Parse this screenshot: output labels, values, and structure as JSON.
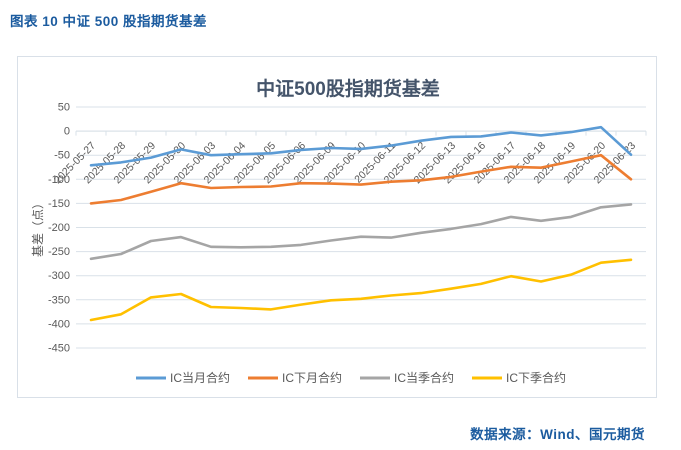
{
  "page": {
    "header_caption": "图表 10  中证 500 股指期货基差",
    "footer_source": "数据来源：Wind、国元期货",
    "accent_text_color": "#1B5B9F"
  },
  "chart_data": {
    "type": "line",
    "title": "中证500股指期货基差",
    "xlabel": "",
    "ylabel": "基差（点）",
    "ylim": [
      -450,
      50
    ],
    "ytick_step": 50,
    "grid": true,
    "legend_position": "bottom",
    "gridline_color": "#D9E1E8",
    "categories": [
      "2025-05-27",
      "2025-05-28",
      "2025-05-29",
      "2025-05-30",
      "2025-06-03",
      "2025-06-04",
      "2025-06-05",
      "2025-06-06",
      "2025-06-09",
      "2025-06-10",
      "2025-06-11",
      "2025-06-12",
      "2025-06-13",
      "2025-06-16",
      "2025-06-17",
      "2025-06-18",
      "2025-06-19",
      "2025-06-20",
      "2025-06-23"
    ],
    "series": [
      {
        "name": "IC当月合约",
        "color": "#5B9BD5",
        "values": [
          -71,
          -65,
          -55,
          -38,
          -50,
          -48,
          -46,
          -39,
          -35,
          -37,
          -30,
          -20,
          -12,
          -11,
          -3,
          -9,
          -2,
          8,
          -49
        ]
      },
      {
        "name": "IC下月合约",
        "color": "#ED7D31",
        "values": [
          -150,
          -143,
          -126,
          -108,
          -118,
          -116,
          -115,
          -108,
          -109,
          -111,
          -105,
          -102,
          -95,
          -84,
          -74,
          -76,
          -63,
          -50,
          -100
        ]
      },
      {
        "name": "IC当季合约",
        "color": "#A5A5A5",
        "values": [
          -265,
          -255,
          -228,
          -220,
          -240,
          -241,
          -240,
          -236,
          -227,
          -219,
          -221,
          -211,
          -203,
          -193,
          -178,
          -186,
          -178,
          -158,
          -152
        ]
      },
      {
        "name": "IC下季合约",
        "color": "#FFC000",
        "values": [
          -392,
          -380,
          -345,
          -338,
          -365,
          -367,
          -370,
          -360,
          -351,
          -348,
          -341,
          -336,
          -327,
          -317,
          -301,
          -312,
          -298,
          -273,
          -267
        ]
      }
    ]
  }
}
